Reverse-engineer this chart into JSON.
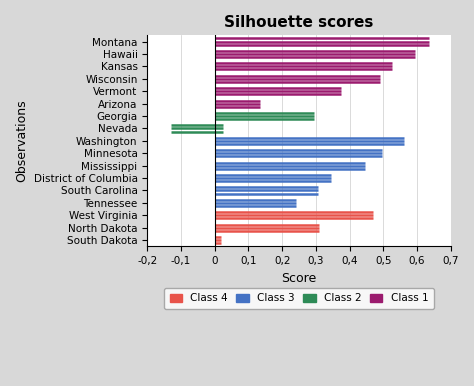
{
  "title": "Silhouette scores",
  "xlabel": "Score",
  "ylabel": "Observations",
  "xlim": [
    -0.2,
    0.7
  ],
  "xticks": [
    -0.2,
    -0.1,
    0.0,
    0.1,
    0.2,
    0.3,
    0.4,
    0.5,
    0.6,
    0.7
  ],
  "xtick_labels": [
    "-0,2",
    "-0,1",
    "0",
    "0,1",
    "0,2",
    "0,3",
    "0,4",
    "0,5",
    "0,6",
    "0,7"
  ],
  "observations": [
    {
      "label": "Montana",
      "value": 0.635,
      "class": 1,
      "color": "#9B1B6E"
    },
    {
      "label": "Hawaii",
      "value": 0.595,
      "class": 1,
      "color": "#9B1B6E"
    },
    {
      "label": "Kansas",
      "value": 0.525,
      "class": 1,
      "color": "#9B1B6E"
    },
    {
      "label": "Wisconsin",
      "value": 0.49,
      "class": 1,
      "color": "#9B1B6E"
    },
    {
      "label": "Vermont",
      "value": 0.375,
      "class": 1,
      "color": "#9B1B6E"
    },
    {
      "label": "Arizona",
      "value": 0.135,
      "class": 1,
      "color": "#9B1B6E"
    },
    {
      "label": "Georgia",
      "value": 0.295,
      "class": 2,
      "color": "#2E8B57"
    },
    {
      "label": "Nevada",
      "value": 0.025,
      "class": 2,
      "color": "#2E8B57"
    },
    {
      "label": "Washington",
      "value": 0.56,
      "class": 3,
      "color": "#4472C4"
    },
    {
      "label": "Minnesota",
      "value": 0.495,
      "class": 3,
      "color": "#4472C4"
    },
    {
      "label": "Mississippi",
      "value": 0.445,
      "class": 3,
      "color": "#4472C4"
    },
    {
      "label": "District of Columbia",
      "value": 0.345,
      "class": 3,
      "color": "#4472C4"
    },
    {
      "label": "South Carolina",
      "value": 0.305,
      "class": 3,
      "color": "#4472C4"
    },
    {
      "label": "Tennessee",
      "value": 0.24,
      "class": 3,
      "color": "#4472C4"
    },
    {
      "label": "West Virginia",
      "value": 0.47,
      "class": 4,
      "color": "#E8534A"
    },
    {
      "label": "North Dakota",
      "value": 0.31,
      "class": 4,
      "color": "#E8534A"
    },
    {
      "label": "South Dakota",
      "value": 0.02,
      "class": 4,
      "color": "#E8534A"
    }
  ],
  "legend": [
    {
      "label": "Class 4",
      "color": "#E8534A"
    },
    {
      "label": "Class 3",
      "color": "#4472C4"
    },
    {
      "label": "Class 2",
      "color": "#2E8B57"
    },
    {
      "label": "Class 1",
      "color": "#9B1B6E"
    }
  ],
  "lines_per_bar": 3,
  "line_width": 1.8,
  "title_fontsize": 11,
  "axis_fontsize": 9,
  "tick_fontsize": 7.5
}
